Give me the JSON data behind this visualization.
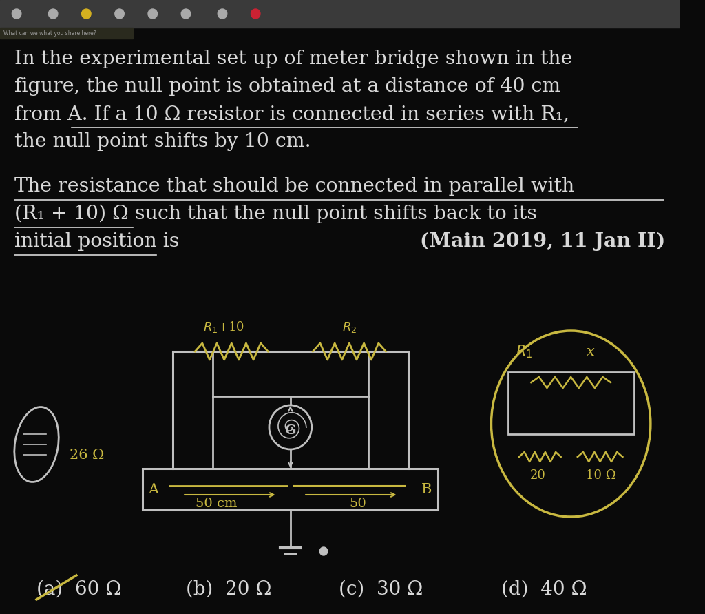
{
  "bg_color": "#0a0a0a",
  "text_color": "#d8d8d8",
  "yellow_color": "#c8b840",
  "circuit_color": "#c0c0c0",
  "toolbar_bg": "#3a3a3a",
  "banner_bg": "#2a2a1e",
  "fig_width": 10.24,
  "fig_height": 8.91,
  "line1": "In the experimental set up of meter bridge shown in the",
  "line2": "figure, the null point is obtained at a distance of 40 cm",
  "line3": "from A. If a 10 Ω resistor is connected in series with R₁,",
  "line4": "the null point shifts by 10 cm.",
  "line5": "The resistance that should be connected in parallel with",
  "line6": "(R₁ + 10) Ω such that the null point shifts back to its",
  "line7": "initial position is",
  "ref": "(Main 2019, 11 Jan II)",
  "opt_a": "(a)  60 Ω",
  "opt_b": "(b)  20 Ω",
  "opt_c": "(c)  30 Ω",
  "opt_d": "(d)  40 Ω"
}
